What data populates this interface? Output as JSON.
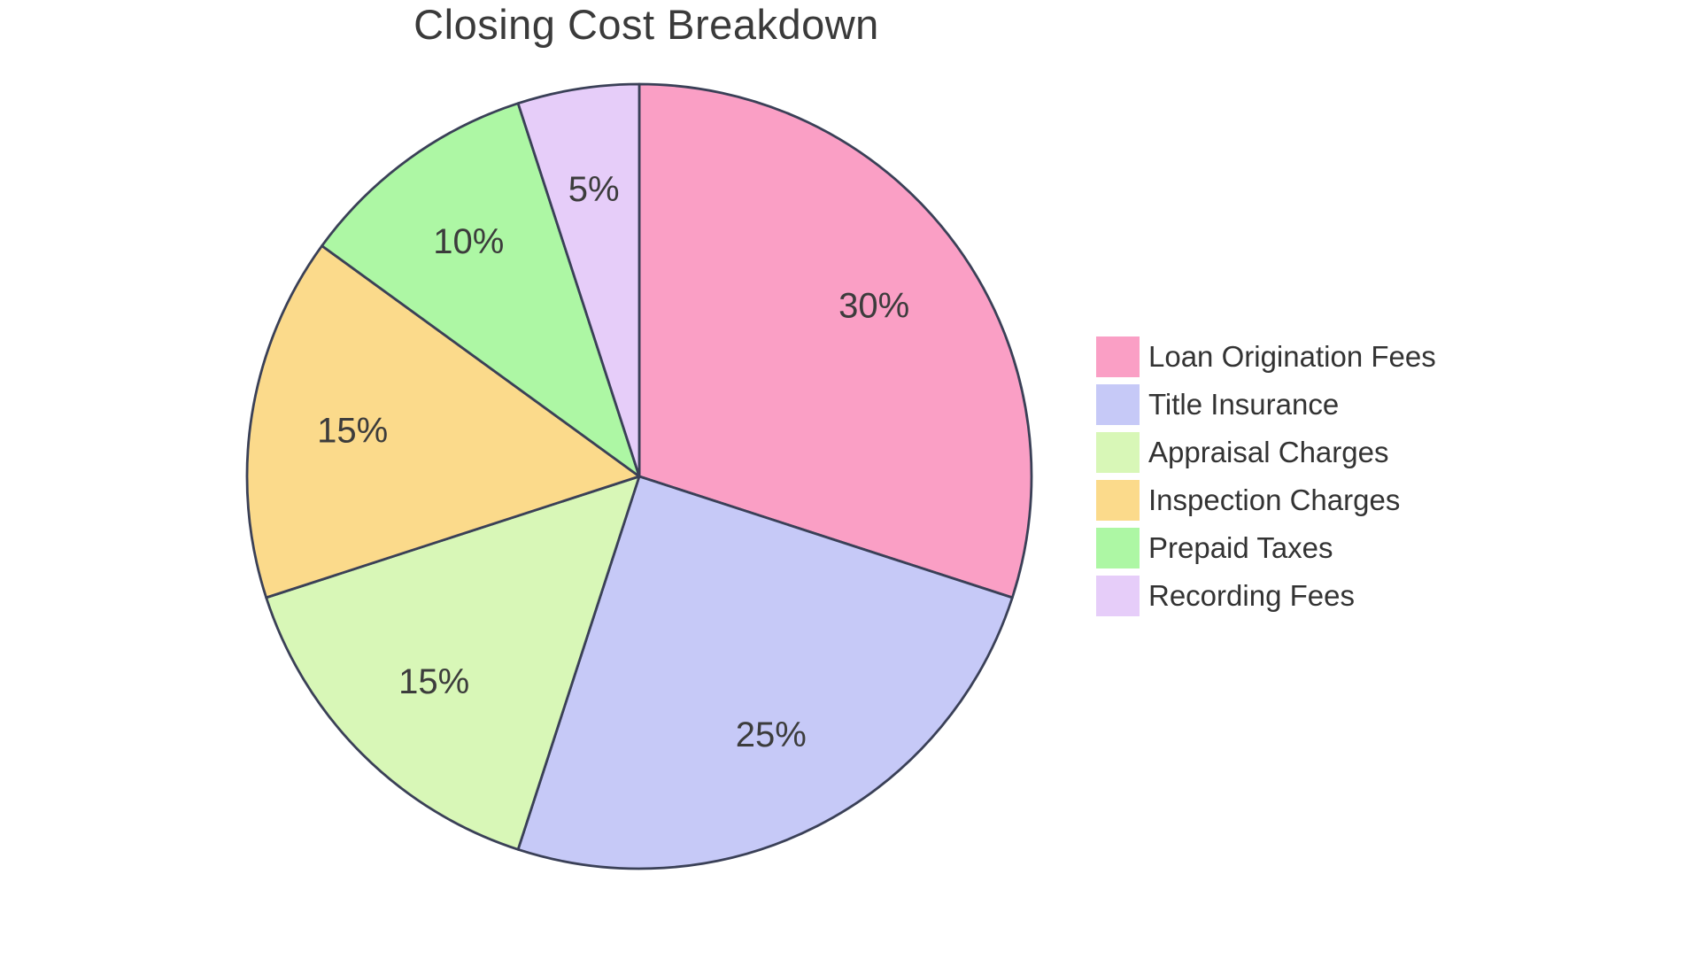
{
  "chart_data": {
    "type": "pie",
    "title": "Closing Cost Breakdown",
    "direction": "clockwise",
    "start_angle": "12-oclock",
    "legend_position": "right",
    "stroke_color": "#3a4057",
    "stroke_width": 2.8,
    "pct_label_color": "#3c3c3c",
    "title_color": "#3a3a3a",
    "legend_text_color": "#333333",
    "slices": [
      {
        "label": "Loan Origination Fees",
        "value": 30,
        "pct_label": "30%",
        "color": "#fa9fc5"
      },
      {
        "label": "Title Insurance",
        "value": 25,
        "pct_label": "25%",
        "color": "#c6c9f7"
      },
      {
        "label": "Appraisal Charges",
        "value": 15,
        "pct_label": "15%",
        "color": "#d8f7b7"
      },
      {
        "label": "Inspection Charges",
        "value": 15,
        "pct_label": "15%",
        "color": "#fbda8b"
      },
      {
        "label": "Prepaid Taxes",
        "value": 10,
        "pct_label": "10%",
        "color": "#adf7a4"
      },
      {
        "label": "Recording Fees",
        "value": 5,
        "pct_label": "5%",
        "color": "#e6cdf9"
      }
    ]
  }
}
